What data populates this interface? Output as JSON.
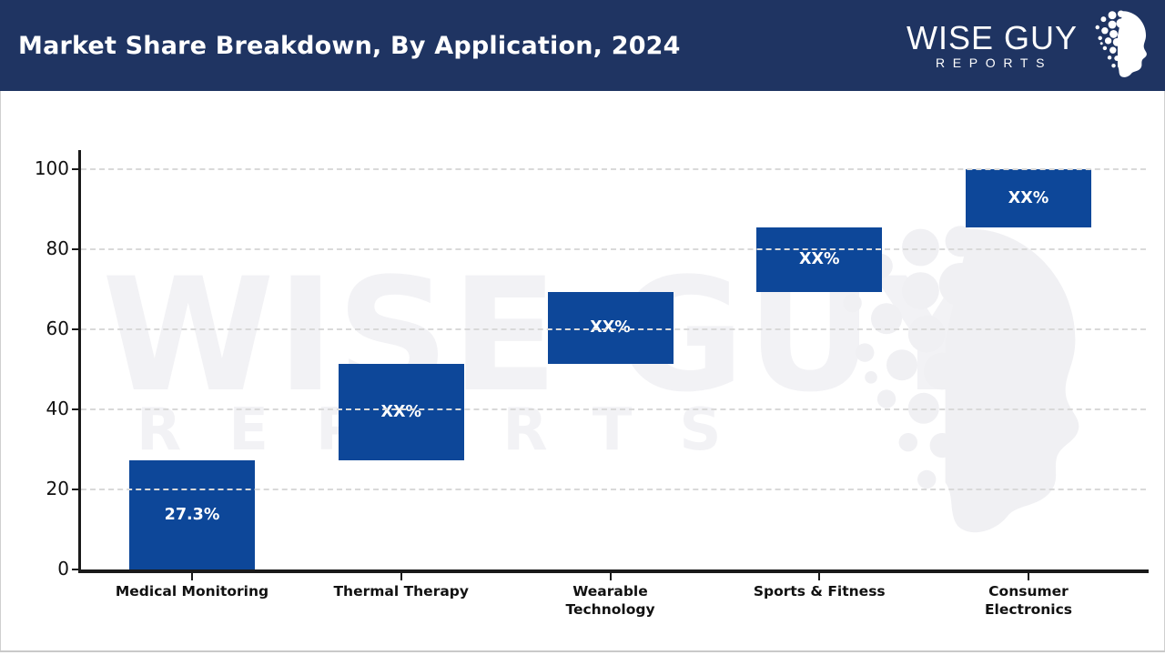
{
  "header": {
    "title": "Market Share Breakdown, By Application, 2024",
    "bg_color": "#1F3462"
  },
  "logo": {
    "line1": "WISE GUY",
    "line2": "REPORTS"
  },
  "watermark": {
    "line1": "WISE GUY",
    "line2": "REPORTS"
  },
  "chart_data": {
    "type": "bar",
    "subtype": "waterfall",
    "title": "Market Share Breakdown, By Application, 2024",
    "xlabel": "",
    "ylabel": "",
    "ylim": [
      0,
      104
    ],
    "yticks": [
      0,
      20,
      40,
      60,
      80,
      100
    ],
    "grid": "dashed-horizontal",
    "bar_color": "#0D4799",
    "label_color": "#ffffff",
    "categories": [
      "Medical Monitoring",
      "Thermal Therapy",
      "Wearable Technology",
      "Sports & Fitness",
      "Consumer Electronics"
    ],
    "category_label_lines": [
      [
        "Medical Monitoring"
      ],
      [
        "Thermal Therapy"
      ],
      [
        "Wearable",
        "Technology"
      ],
      [
        "Sports & Fitness"
      ],
      [
        "Consumer",
        "Electronics"
      ]
    ],
    "segments": [
      {
        "category": "Medical Monitoring",
        "start": 0,
        "end": 27.3,
        "label": "27.3%"
      },
      {
        "category": "Thermal Therapy",
        "start": 27.3,
        "end": 51.3,
        "label": "XX%"
      },
      {
        "category": "Wearable Technology",
        "start": 51.3,
        "end": 69.4,
        "label": "XX%"
      },
      {
        "category": "Sports & Fitness",
        "start": 69.4,
        "end": 85.5,
        "label": "XX%"
      },
      {
        "category": "Consumer Electronics",
        "start": 85.5,
        "end": 100,
        "label": "XX%"
      }
    ]
  }
}
